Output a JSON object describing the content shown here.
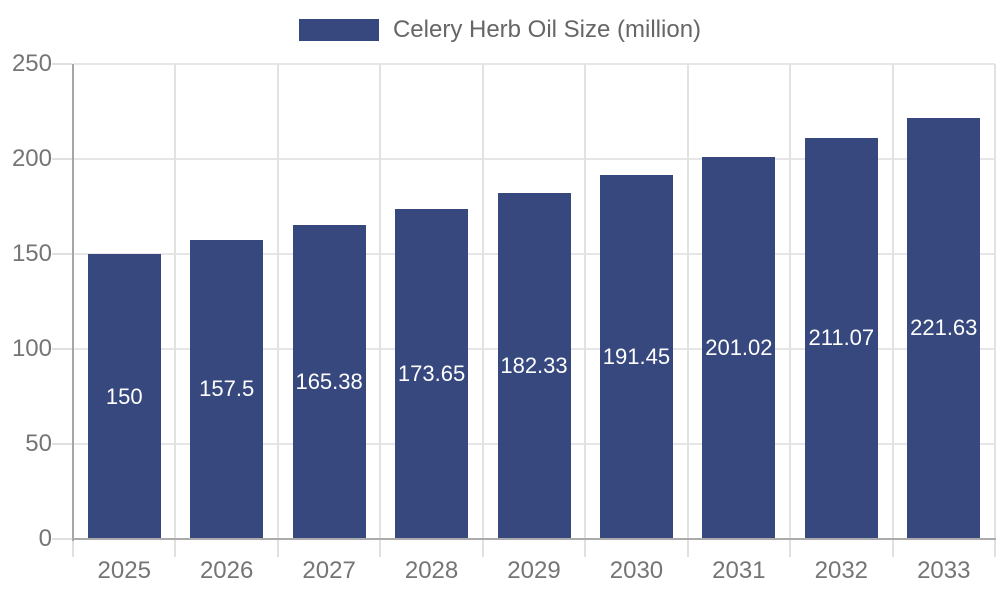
{
  "chart_data": {
    "type": "bar",
    "series_label": "Celery Herb Oil Size (million)",
    "categories": [
      "2025",
      "2026",
      "2027",
      "2028",
      "2029",
      "2030",
      "2031",
      "2032",
      "2033"
    ],
    "values": [
      150,
      157.5,
      165.38,
      173.65,
      182.33,
      191.45,
      201.02,
      211.07,
      221.63
    ],
    "value_labels": [
      "150",
      "157.5",
      "165.38",
      "173.65",
      "182.33",
      "191.45",
      "201.02",
      "211.07",
      "221.63"
    ],
    "y_ticks": [
      0,
      50,
      100,
      150,
      200,
      250
    ],
    "ylim": [
      0,
      250
    ],
    "grid": true,
    "legend_position": "top",
    "bar_color": "#36487e",
    "grid_color": "#e6e6e6",
    "axis_color": "#ababab",
    "axis_label_color": "#757575",
    "legend_label_color": "#666666",
    "value_label_color": "#ffffff"
  }
}
